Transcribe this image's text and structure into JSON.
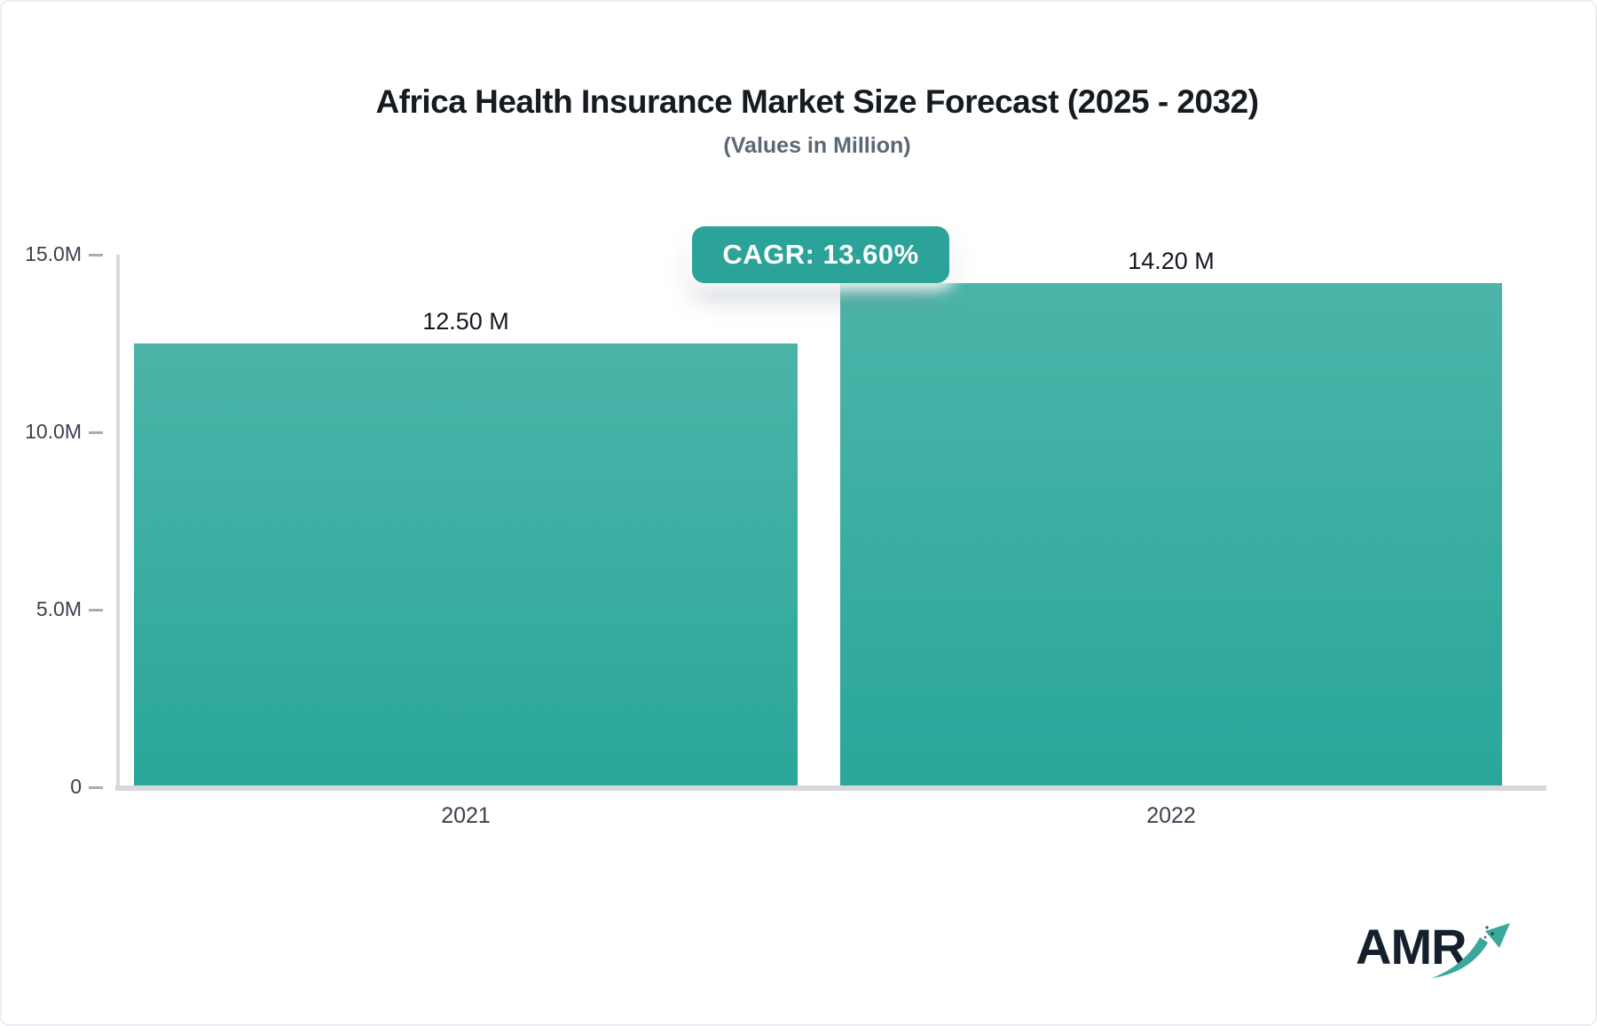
{
  "title": "Africa Health Insurance Market Size Forecast (2025 - 2032)",
  "subtitle": "(Values in Million)",
  "cagr_badge": "CAGR: 13.60%",
  "logo": {
    "text": "AMR"
  },
  "colors": {
    "bar_top": "#4cb4a9",
    "bar_bottom": "#2aa79a",
    "badge": "#2ba399",
    "axis": "#d5d8dc",
    "tick": "#a7adb5",
    "label": "#3a424e",
    "value_label": "#131922",
    "title": "#161b22",
    "subtitle": "#5c6773",
    "logo_navy": "#15202e",
    "logo_teal": "#3ba89b"
  },
  "chart_data": {
    "type": "bar",
    "title": "Africa Health Insurance Market Size Forecast (2025 - 2032)",
    "subtitle": "(Values in Million)",
    "categories": [
      "2021",
      "2022"
    ],
    "values": [
      12.5,
      14.2
    ],
    "value_labels": [
      "12.50 M",
      "14.20 M"
    ],
    "xlabel": "",
    "ylabel": "",
    "ylim": [
      0,
      15
    ],
    "yticks": [
      {
        "value": 0,
        "label": "0"
      },
      {
        "value": 5,
        "label": "5.0M"
      },
      {
        "value": 10,
        "label": "10.0M"
      },
      {
        "value": 15,
        "label": "15.0M"
      }
    ],
    "grid": false,
    "legend": false,
    "annotations": [
      {
        "type": "badge",
        "text": "CAGR: 13.60%"
      }
    ]
  }
}
